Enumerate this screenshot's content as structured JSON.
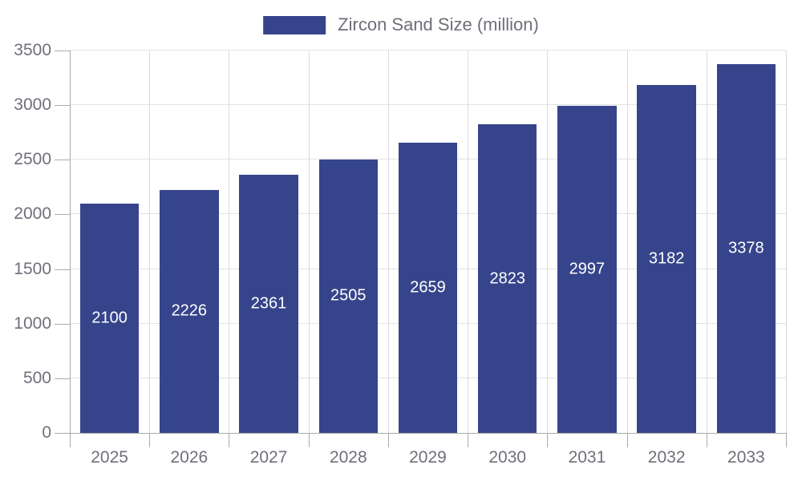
{
  "legend": {
    "label": "Zircon Sand Size (million)"
  },
  "chart_data": {
    "type": "bar",
    "title": "Zircon Sand Size (million)",
    "categories": [
      "2025",
      "2026",
      "2027",
      "2028",
      "2029",
      "2030",
      "2031",
      "2032",
      "2033"
    ],
    "values": [
      2100,
      2226,
      2361,
      2505,
      2659,
      2823,
      2997,
      3182,
      3378
    ],
    "yticks": [
      0,
      500,
      1000,
      1500,
      2000,
      2500,
      3000,
      3500
    ],
    "ylim": [
      0,
      3500
    ],
    "xlabel": "",
    "ylabel": "",
    "legend_position": "top",
    "grid": true,
    "colors": {
      "bar": "#36458b",
      "value_label": "#ffffff",
      "axis_text": "#6e7079",
      "axis_line": "#ababab",
      "grid_h": "#e3e3e6",
      "grid_v": "#dcdcdf",
      "background": "#ffffff"
    }
  }
}
